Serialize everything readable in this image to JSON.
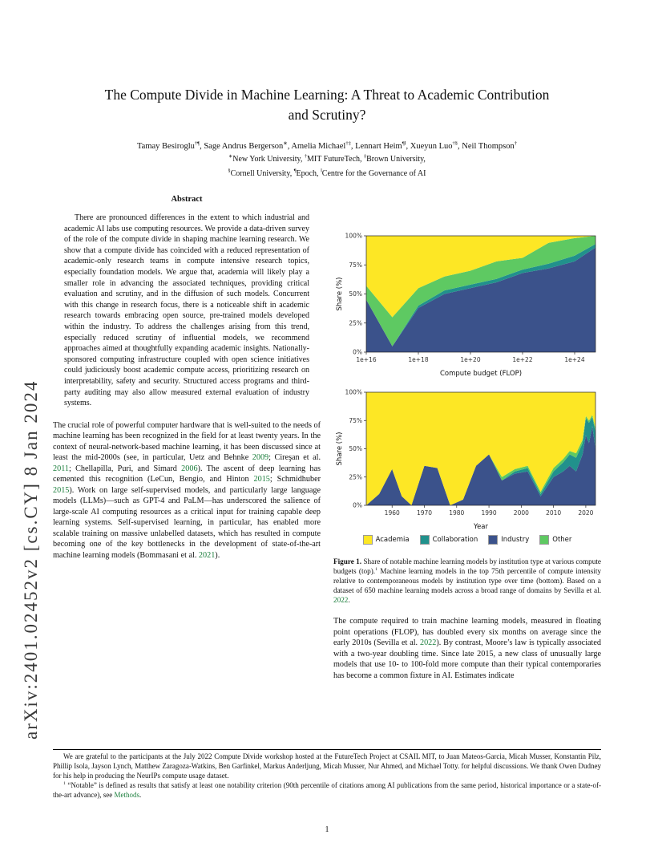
{
  "colors": {
    "citation": "#1b7e3c",
    "academia": "#FDE725",
    "collaboration": "#21918C",
    "industry": "#3B528B",
    "other": "#5EC962"
  },
  "page": {
    "number": "1",
    "arxiv_label": "arXiv:2401.02452v2  [cs.CY]  8 Jan 2024"
  },
  "header": {
    "title": "The Compute Divide in Machine Learning: A Threat to Academic Contribution and Scrutiny?",
    "authors": [
      {
        "t": "Tamay Besiroglu"
      },
      {
        "t": "†¶",
        "s": "sup"
      },
      {
        "t": ", Sage Andrus Bergerson"
      },
      {
        "t": "∗",
        "s": "sup"
      },
      {
        "t": ", Amelia Michael"
      },
      {
        "t": "†‡",
        "s": "sup"
      },
      {
        "t": ", Lennart Heim"
      },
      {
        "t": "¶‖",
        "s": "sup"
      },
      {
        "t": ", Xueyun Luo"
      },
      {
        "t": "†§",
        "s": "sup"
      },
      {
        "t": ", Neil Thompson"
      },
      {
        "t": "†",
        "s": "sup"
      }
    ],
    "affiliations_line1": [
      {
        "t": "∗",
        "s": "sup"
      },
      {
        "t": "New York University, "
      },
      {
        "t": "†",
        "s": "sup"
      },
      {
        "t": "MIT FutureTech, "
      },
      {
        "t": "‡",
        "s": "sup"
      },
      {
        "t": "Brown University,"
      }
    ],
    "affiliations_line2": [
      {
        "t": "§",
        "s": "sup"
      },
      {
        "t": "Cornell University, "
      },
      {
        "t": "¶",
        "s": "sup"
      },
      {
        "t": "Epoch, "
      },
      {
        "t": "‖",
        "s": "sup"
      },
      {
        "t": "Centre for the Governance of AI"
      }
    ]
  },
  "abstract": {
    "heading": "Abstract",
    "text": "There are pronounced differences in the extent to which industrial and academic AI labs use computing resources. We provide a data-driven survey of the role of the compute divide in shaping machine learning research. We show that a compute divide has coincided with a reduced representation of academic-only research teams in compute intensive research topics, especially foundation models. We argue that, academia will likely play a smaller role in advancing the associated techniques, providing critical evaluation and scrutiny, and in the diffusion of such models. Concurrent with this change in research focus, there is a noticeable shift in academic research towards embracing open source, pre-trained models developed within the industry. To address the challenges arising from this trend, especially reduced scrutiny of influential models, we recommend approaches aimed at thoughtfully expanding academic insights. Nationally-sponsored computing infrastructure coupled with open science initiatives could judiciously boost academic compute access, prioritizing research on interpretability, safety and security. Structured access programs and third-party auditing may also allow measured external evaluation of industry systems."
  },
  "left_column": {
    "paragraph1": [
      {
        "t": "The crucial role of powerful computer hardware that is well-suited to the needs of machine learning has been recognized in the field for at least twenty years. In the context of neural-network-based machine learning, it has been discussed since at least the mid-2000s (see, in particular, Uetz and Behnke "
      },
      {
        "t": "2009",
        "s": "link"
      },
      {
        "t": "; Cireşan et al. "
      },
      {
        "t": "2011",
        "s": "link"
      },
      {
        "t": "; Chellapilla, Puri, and Simard "
      },
      {
        "t": "2006",
        "s": "link"
      },
      {
        "t": "). The ascent of deep learning has cemented this recognition (LeCun, Bengio, and Hinton "
      },
      {
        "t": "2015",
        "s": "link"
      },
      {
        "t": "; Schmidhuber "
      },
      {
        "t": "2015",
        "s": "link"
      },
      {
        "t": "). Work on large self-supervised models, and particularly large language models (LLMs)—such as GPT-4 and PaLM—has underscored the salience of large-scale AI computing resources as a critical input for training capable deep learning systems. Self-supervised learning, in particular, has enabled more scalable training on massive unlabelled datasets, which has resulted in compute becoming one of the key bottlenecks in the development of state-of-the-art machine learning models (Bommasani et al. "
      },
      {
        "t": "2021",
        "s": "link"
      },
      {
        "t": ")."
      }
    ]
  },
  "right_column": {
    "paragraph1": [
      {
        "t": "The compute required to train machine learning models, measured in floating point operations (FLOP), has doubled every six months on average since the early 2010s (Sevilla et al. "
      },
      {
        "t": "2022",
        "s": "link"
      },
      {
        "t": "). By contrast, Moore’s law is typically associated with a two-year doubling time. Since late 2015, a new class of unusually large models that use 10- to 100-fold more compute than their typical contemporaries has become a common fixture in AI. Estimates indicate"
      }
    ]
  },
  "figure": {
    "caption": [
      {
        "t": "Figure 1.",
        "s": "bold"
      },
      {
        "t": " Share of notable machine learning models by institution type at various compute budgets (top)."
      },
      {
        "t": "1",
        "s": "sup"
      },
      {
        "t": " Machine learning models in the top 75th percentile of compute intensity relative to contemporaneous models by institution type over time (bottom). Based on a dataset of 650 machine learning models across a broad range of domains by Sevilla et al. "
      },
      {
        "t": "2022",
        "s": "link"
      },
      {
        "t": "."
      }
    ],
    "legend": [
      {
        "label": "Academia",
        "color": "#FDE725"
      },
      {
        "label": "Collaboration",
        "color": "#21918C"
      },
      {
        "label": "Industry",
        "color": "#3B528B"
      },
      {
        "label": "Other",
        "color": "#5EC962"
      }
    ]
  },
  "footnotes": {
    "acknowledgment": "We are grateful to the participants at the July 2022 Compute Divide workshop hosted at the FutureTech Project at CSAIL MIT, to Juan Mateos-Garcia, Micah Musser, Konstantin Pilz, Phillip Isola, Jayson Lynch, Matthew Zaragoza-Watkins, Ben Garfinkel, Markus Anderljung, Micah Musser, Nur Ahmed, and Michael Totty. for helpful discussions. We thank Owen Dudney for his help in producing the NeurIPs compute usage dataset.",
    "note1": [
      {
        "t": "1",
        "s": "sup"
      },
      {
        "t": " “Notable” is defined as results that satisfy at least one notability criterion (90th percentile of citations among AI publications from the same period, historical importance or a state-of-the-art advance), see "
      },
      {
        "t": "Methods",
        "s": "link"
      },
      {
        "t": "."
      }
    ]
  },
  "chart_data": [
    {
      "type": "area",
      "stacked": true,
      "title": "",
      "xlabel": "Compute budget (FLOP)",
      "ylabel": "Share (%)",
      "x_unit": "log10(FLOP)",
      "xlim": [
        16,
        24.8
      ],
      "ylim": [
        0,
        100
      ],
      "x": [
        16,
        17,
        18,
        19,
        20,
        21,
        22,
        23,
        24,
        24.8
      ],
      "x_ticks": [
        {
          "v": 16,
          "label": "1e+16"
        },
        {
          "v": 18,
          "label": "1e+18"
        },
        {
          "v": 20,
          "label": "1e+20"
        },
        {
          "v": 22,
          "label": "1e+22"
        },
        {
          "v": 24,
          "label": "1e+24"
        }
      ],
      "y_ticks": [
        {
          "v": 0,
          "label": "0%"
        },
        {
          "v": 25,
          "label": "25%"
        },
        {
          "v": 50,
          "label": "50%"
        },
        {
          "v": 75,
          "label": "75%"
        },
        {
          "v": 100,
          "label": "100%"
        }
      ],
      "series": [
        {
          "name": "Industry",
          "color": "#3B528B",
          "values": [
            45,
            5,
            38,
            50,
            55,
            60,
            68,
            72,
            78,
            90
          ]
        },
        {
          "name": "Collaboration",
          "color": "#21918C",
          "values": [
            0,
            0,
            2,
            3,
            3,
            3,
            3,
            4,
            5,
            3
          ]
        },
        {
          "name": "Other",
          "color": "#5EC962",
          "values": [
            12,
            25,
            15,
            12,
            12,
            15,
            10,
            18,
            15,
            7
          ]
        },
        {
          "name": "Academia",
          "color": "#FDE725",
          "values": [
            43,
            70,
            45,
            35,
            30,
            22,
            19,
            6,
            2,
            0
          ]
        }
      ]
    },
    {
      "type": "area",
      "stacked": true,
      "title": "",
      "xlabel": "Year",
      "ylabel": "Share (%)",
      "xlim": [
        1952,
        2023
      ],
      "ylim": [
        0,
        100
      ],
      "x": [
        1952,
        1956,
        1960,
        1963,
        1966,
        1970,
        1974,
        1978,
        1982,
        1986,
        1990,
        1994,
        1998,
        2002,
        2006,
        2010,
        2013,
        2015,
        2017,
        2019,
        2020,
        2021,
        2022,
        2023
      ],
      "x_ticks": [
        {
          "v": 1960,
          "label": "1960"
        },
        {
          "v": 1970,
          "label": "1970"
        },
        {
          "v": 1980,
          "label": "1980"
        },
        {
          "v": 1990,
          "label": "1990"
        },
        {
          "v": 2000,
          "label": "2000"
        },
        {
          "v": 2010,
          "label": "2010"
        },
        {
          "v": 2020,
          "label": "2020"
        }
      ],
      "y_ticks": [
        {
          "v": 0,
          "label": "0%"
        },
        {
          "v": 25,
          "label": "25%"
        },
        {
          "v": 50,
          "label": "50%"
        },
        {
          "v": 75,
          "label": "75%"
        },
        {
          "v": 100,
          "label": "100%"
        }
      ],
      "series": [
        {
          "name": "Industry",
          "color": "#3B528B",
          "values": [
            0,
            10,
            32,
            8,
            0,
            35,
            33,
            0,
            5,
            35,
            45,
            22,
            28,
            30,
            8,
            25,
            30,
            35,
            30,
            45,
            62,
            55,
            70,
            50
          ]
        },
        {
          "name": "Collaboration",
          "color": "#21918C",
          "values": [
            0,
            0,
            0,
            0,
            0,
            0,
            0,
            0,
            0,
            0,
            0,
            0,
            2,
            3,
            2,
            5,
            8,
            10,
            12,
            10,
            15,
            18,
            8,
            15
          ]
        },
        {
          "name": "Other",
          "color": "#5EC962",
          "values": [
            0,
            0,
            0,
            0,
            0,
            0,
            0,
            0,
            0,
            0,
            0,
            3,
            2,
            2,
            2,
            3,
            3,
            3,
            4,
            3,
            2,
            2,
            2,
            3
          ]
        },
        {
          "name": "Academia",
          "color": "#FDE725",
          "values": [
            100,
            90,
            68,
            92,
            100,
            65,
            67,
            100,
            95,
            65,
            55,
            75,
            68,
            65,
            88,
            67,
            59,
            52,
            54,
            42,
            21,
            25,
            20,
            32
          ]
        }
      ]
    }
  ]
}
